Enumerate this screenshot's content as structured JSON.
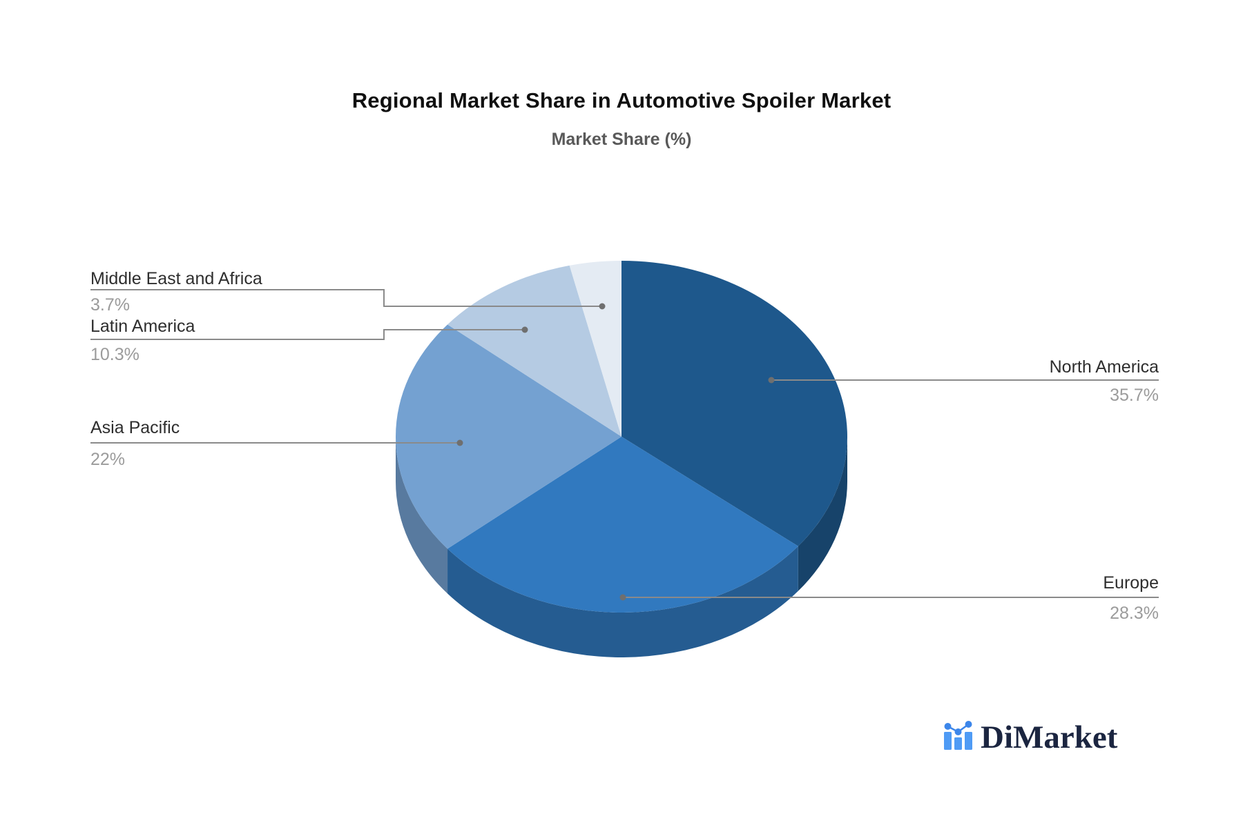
{
  "title": "Regional Market Share in Automotive Spoiler Market",
  "subtitle": "Market Share (%)",
  "logo": {
    "text": "DiMarket"
  },
  "chart_data": {
    "type": "pie",
    "title": "Regional Market Share in Automotive Spoiler Market",
    "subtitle": "Market Share (%)",
    "unit": "%",
    "style": "3d-pie",
    "start_angle_deg": 0,
    "direction": "clockwise",
    "legend": "none",
    "labels_position": "callout",
    "connector_color": "#8a8a8a",
    "connector_dot_color": "#6f6f6f",
    "label_color": "#2e2e2e",
    "value_color": "#9b9b9b",
    "slices": [
      {
        "label": "North America",
        "value": 35.7,
        "display": "35.7%",
        "color": "#1E588C"
      },
      {
        "label": "Europe",
        "value": 28.3,
        "display": "28.3%",
        "color": "#3179BF"
      },
      {
        "label": "Asia Pacific",
        "value": 22,
        "display": "22%",
        "color": "#74A1D1"
      },
      {
        "label": "Latin America",
        "value": 10.3,
        "display": "10.3%",
        "color": "#B5CBE3"
      },
      {
        "label": "Middle East and Africa",
        "value": 3.7,
        "display": "3.7%",
        "color": "#E4EBF3"
      }
    ]
  }
}
